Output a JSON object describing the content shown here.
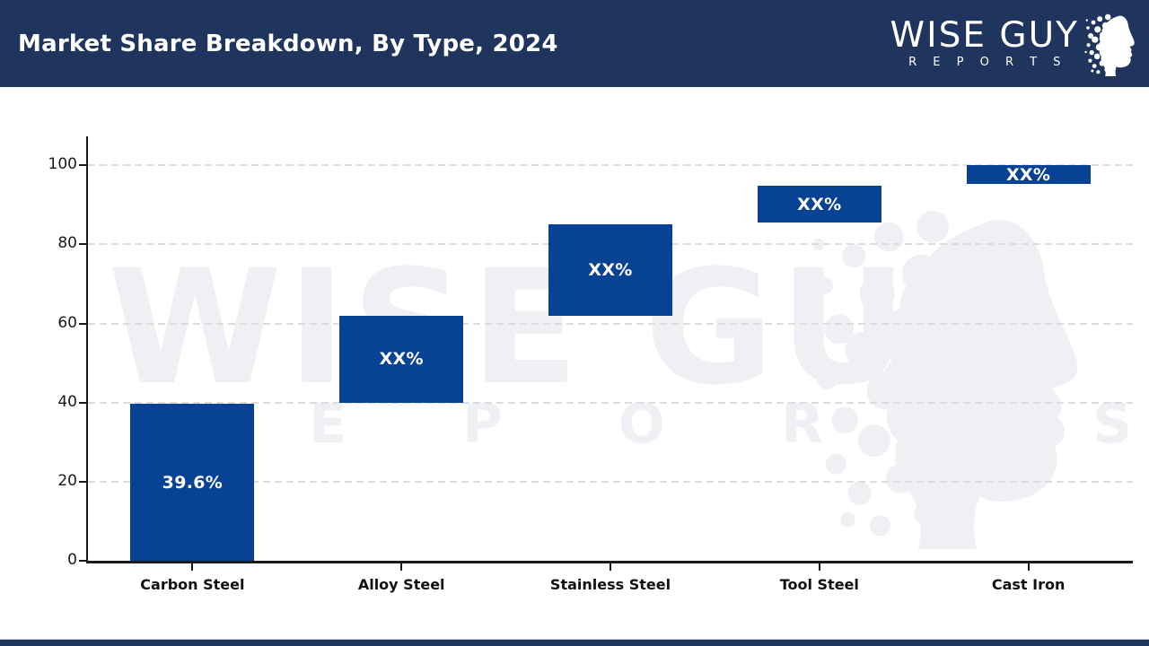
{
  "header": {
    "title": "Market Share Breakdown, By Type, 2024",
    "bg_color": "#20355E",
    "logo": {
      "line1": "WISE GUY",
      "line2": "R E P O R T S"
    }
  },
  "watermark": {
    "line1": "WISE GUY",
    "line2": "R E P O R T S"
  },
  "chart_data": {
    "type": "bar",
    "variant": "waterfall",
    "title": "Market Share Breakdown, By Type, 2024",
    "categories": [
      "Carbon Steel",
      "Alloy Steel",
      "Stainless Steel",
      "Tool Steel",
      "Cast Iron"
    ],
    "bars": [
      {
        "category": "Carbon Steel",
        "start": 0,
        "end": 39.6,
        "label": "39.6%"
      },
      {
        "category": "Alloy Steel",
        "start": 40,
        "end": 62,
        "label": "XX%"
      },
      {
        "category": "Stainless Steel",
        "start": 62,
        "end": 85.2,
        "label": "XX%"
      },
      {
        "category": "Tool Steel",
        "start": 85.5,
        "end": 94.8,
        "label": "XX%"
      },
      {
        "category": "Cast Iron",
        "start": 95.2,
        "end": 100,
        "label": "XX%"
      }
    ],
    "xlabel": "",
    "ylabel": "",
    "ylim": [
      0,
      100
    ],
    "yticks": [
      0,
      20,
      40,
      60,
      80,
      100
    ],
    "grid": "horizontal-dashed",
    "legend": "none",
    "bar_color": "#084294",
    "bar_label_color": "#ffffff"
  }
}
